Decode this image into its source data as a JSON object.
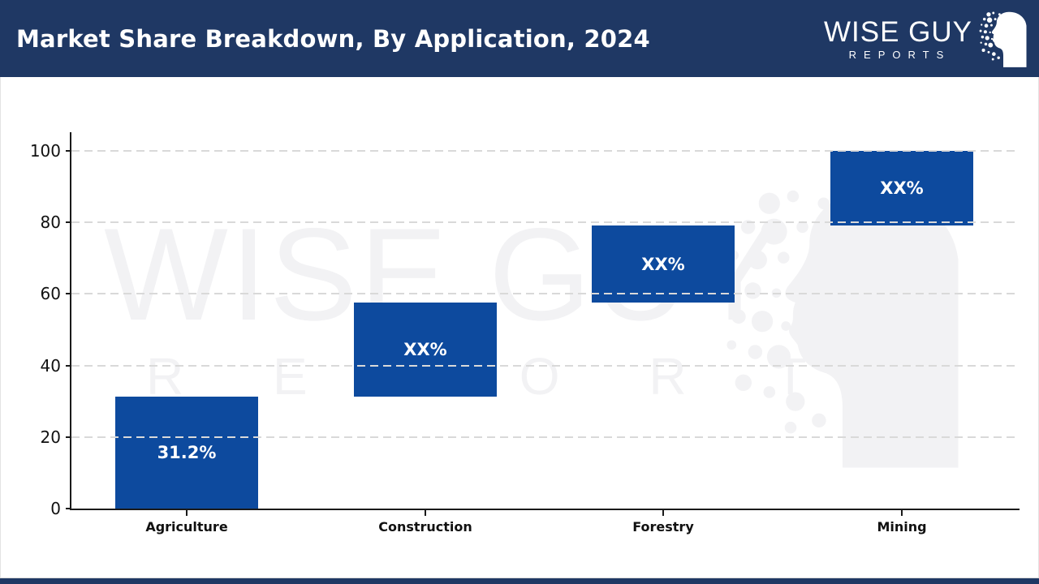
{
  "header": {
    "title": "Market Share Breakdown, By Application, 2024",
    "logo": {
      "line1": "WISE GUY",
      "line2": "REPORTS"
    }
  },
  "watermark": {
    "line1": "WISE GUY",
    "line2": "R E P O R T S"
  },
  "chart_data": {
    "type": "bar",
    "subtype": "waterfall",
    "title": "Market Share Breakdown, By Application, 2024",
    "categories": [
      "Agriculture",
      "Construction",
      "Forestry",
      "Mining"
    ],
    "bars": [
      {
        "category": "Agriculture",
        "label": "31.2%",
        "start": 0,
        "end": 31.2
      },
      {
        "category": "Construction",
        "label": "XX%",
        "start": 31.2,
        "end": 57.5
      },
      {
        "category": "Forestry",
        "label": "XX%",
        "start": 57.5,
        "end": 79.2
      },
      {
        "category": "Mining",
        "label": "XX%",
        "start": 79.2,
        "end": 100
      }
    ],
    "yticks": [
      0,
      20,
      40,
      60,
      80,
      100
    ],
    "ylim": [
      0,
      105
    ],
    "xlabel": "",
    "ylabel": "",
    "grid": "horizontal-dashed",
    "legend": "none"
  },
  "colors": {
    "header_bg": "#1f3864",
    "bar": "#0d4a9e",
    "bar_label": "#ffffff",
    "axis": "#1a1a1a",
    "grid": "#d9d9d9",
    "watermark": "#f2f2f4",
    "chart_bg": "#ffffff"
  }
}
